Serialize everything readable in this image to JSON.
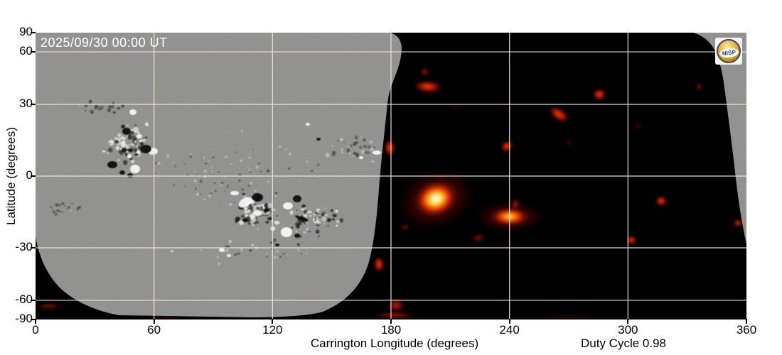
{
  "meta": {
    "timestamp": "2025/09/30 00:00 UT",
    "logo_text": "NISP"
  },
  "axes": {
    "xlabel": "Carrington Longitude (degrees)",
    "ylabel": "Latitude (degrees)",
    "duty_cycle_label": "Duty Cycle 0.98",
    "x_ticks": [
      0,
      60,
      120,
      180,
      240,
      300,
      360
    ],
    "y_ticks": [
      90,
      60,
      30,
      0,
      -30,
      -60,
      -90
    ],
    "grid_x": [
      60,
      120,
      180,
      240,
      300
    ],
    "grid_y": [
      60,
      30,
      0,
      -30,
      -60
    ],
    "x_range": [
      0,
      360
    ],
    "y_range": [
      -90,
      90
    ],
    "y_scale": "sine-latitude",
    "grid": "on"
  },
  "colors": {
    "page_bg": "#ffffff",
    "grid": "#f2e7cf",
    "front_side_gray": "#8f8f8e",
    "far_side_bg": "#000000",
    "timestamp_text": "#ffffff",
    "axis_text": "#000000",
    "hot_core": "#ffffe0",
    "hot_mid": "#ff8c00",
    "hot_red": "#d42100",
    "hot_dark": "#5a0c00",
    "logo_gold": "#d29c1f",
    "speck_white": "#f7f7f7",
    "speck_black": "#0c0c0c"
  },
  "chart_data": {
    "type": "heatmap",
    "title": "",
    "xlabel": "Carrington Longitude (degrees)",
    "ylabel": "Latitude (degrees)",
    "annotations": [
      "2025/09/30 00:00 UT",
      "Duty Cycle 0.98",
      "NISP"
    ],
    "xlim": [
      0,
      360
    ],
    "ylim": [
      -90,
      90
    ],
    "farside_blobs": [
      {
        "lon": 202.7,
        "lat": -9.1,
        "intensity": "bright",
        "rx": 30,
        "ry": 24,
        "rot": -20,
        "halo": true
      },
      {
        "lon": 240.1,
        "lat": -16.4,
        "intensity": "strong",
        "rx": 26,
        "ry": 12,
        "rot": 0,
        "halo": true
      },
      {
        "lon": 243.0,
        "lat": -11.4,
        "intensity": "red-dim",
        "rx": 5,
        "ry": 9,
        "rot": 15
      },
      {
        "lon": 265.0,
        "lat": 25.5,
        "intensity": "red",
        "rx": 16,
        "ry": 8,
        "rot": 35
      },
      {
        "lon": 198.7,
        "lat": 38.6,
        "intensity": "red",
        "rx": 20,
        "ry": 8,
        "rot": 4
      },
      {
        "lon": 196.9,
        "lat": 46.7,
        "intensity": "red-dim",
        "rx": 6,
        "ry": 5,
        "rot": 0
      },
      {
        "lon": 285.5,
        "lat": 34.7,
        "intensity": "red",
        "rx": 9,
        "ry": 8,
        "rot": 0
      },
      {
        "lon": 335.9,
        "lat": 38.6,
        "intensity": "red-dim",
        "rx": 5,
        "ry": 4,
        "rot": 0
      },
      {
        "lon": 238.7,
        "lat": 12.0,
        "intensity": "red",
        "rx": 9,
        "ry": 7,
        "rot": -25
      },
      {
        "lon": 179.3,
        "lat": 11.4,
        "intensity": "red",
        "rx": 7,
        "ry": 12,
        "rot": 0
      },
      {
        "lon": 316.8,
        "lat": -10.0,
        "intensity": "red",
        "rx": 8,
        "ry": 7,
        "rot": 0
      },
      {
        "lon": 301.7,
        "lat": -26.5,
        "intensity": "red",
        "rx": 7,
        "ry": 6,
        "rot": 0
      },
      {
        "lon": 355.7,
        "lat": -19.1,
        "intensity": "red",
        "rx": 6,
        "ry": 5,
        "rot": 0
      },
      {
        "lon": 224.3,
        "lat": -25.5,
        "intensity": "dim",
        "rx": 12,
        "ry": 7,
        "rot": -10
      },
      {
        "lon": 187.2,
        "lat": -20.9,
        "intensity": "dim",
        "rx": 7,
        "ry": 6,
        "rot": 0
      },
      {
        "lon": 173.9,
        "lat": -37.9,
        "intensity": "red",
        "rx": 7,
        "ry": 11,
        "rot": 0
      },
      {
        "lon": 182.5,
        "lat": -64.3,
        "intensity": "red-dim",
        "rx": 12,
        "ry": 9,
        "rot": 0
      },
      {
        "lon": 304.9,
        "lat": 20.3,
        "intensity": "dim",
        "rx": 5,
        "ry": 4,
        "rot": 0
      },
      {
        "lon": 270.0,
        "lat": 13.5,
        "intensity": "dim",
        "rx": 5,
        "ry": 4,
        "rot": 0
      },
      {
        "lon": 212.4,
        "lat": 29.0,
        "intensity": "faint",
        "rx": 7,
        "ry": 5,
        "rot": 0
      },
      {
        "lon": 181.8,
        "lat": -76.0,
        "intensity": "red-dim",
        "rx": 30,
        "ry": 4,
        "rot": 0
      },
      {
        "lon": 6.5,
        "lat": -65.0,
        "intensity": "dim",
        "rx": 22,
        "ry": 5,
        "rot": 0
      },
      {
        "lon": 270.0,
        "lat": -80.0,
        "intensity": "faint",
        "rx": 50,
        "ry": 3,
        "rot": 0
      },
      {
        "lon": 64.8,
        "lat": -79.0,
        "intensity": "faint",
        "rx": 30,
        "ry": 3,
        "rot": 0
      }
    ],
    "magnetogram": {
      "clusters": [
        {
          "cx": 130,
          "cy": 158,
          "sx": 42,
          "sy": 36,
          "n": 75,
          "black": 0.5,
          "min": 1,
          "max": 4,
          "op": 0.8
        },
        {
          "cx": 95,
          "cy": 104,
          "sx": 48,
          "sy": 10,
          "n": 26,
          "black": 0.9,
          "min": 1,
          "max": 3,
          "op": 0.5
        },
        {
          "cx": 310,
          "cy": 252,
          "sx": 40,
          "sy": 34,
          "n": 85,
          "black": 0.5,
          "min": 1,
          "max": 4,
          "op": 0.8
        },
        {
          "cx": 392,
          "cy": 262,
          "sx": 48,
          "sy": 30,
          "n": 75,
          "black": 0.6,
          "min": 1,
          "max": 3.5,
          "op": 0.75
        },
        {
          "cx": 445,
          "cy": 162,
          "sx": 50,
          "sy": 26,
          "n": 38,
          "black": 0.6,
          "min": 1,
          "max": 3,
          "op": 0.5
        },
        {
          "cx": 275,
          "cy": 200,
          "sx": 165,
          "sy": 85,
          "n": 90,
          "black": 0.5,
          "min": 0.8,
          "max": 2.2,
          "op": 0.45
        },
        {
          "cx": 35,
          "cy": 247,
          "sx": 32,
          "sy": 14,
          "n": 20,
          "black": 0.95,
          "min": 1,
          "max": 2.5,
          "op": 0.45
        },
        {
          "cx": 300,
          "cy": 308,
          "sx": 120,
          "sy": 26,
          "n": 34,
          "black": 0.35,
          "min": 0.8,
          "max": 2.5,
          "op": 0.5
        }
      ],
      "patches": [
        {
          "x": 137,
          "y": 112,
          "rx": 5,
          "ry": 4,
          "s": "w"
        },
        {
          "x": 146,
          "y": 146,
          "rx": 4,
          "ry": 3,
          "s": "w"
        },
        {
          "x": 165,
          "y": 167,
          "rx": 7,
          "ry": 5,
          "s": "w"
        },
        {
          "x": 140,
          "y": 192,
          "rx": 7,
          "ry": 6,
          "s": "w"
        },
        {
          "x": 132,
          "y": 174,
          "rx": 3,
          "ry": 3,
          "s": "w"
        },
        {
          "x": 128,
          "y": 139,
          "rx": 6,
          "ry": 5,
          "s": "b"
        },
        {
          "x": 155,
          "y": 164,
          "rx": 8,
          "ry": 6,
          "s": "b"
        },
        {
          "x": 108,
          "y": 186,
          "rx": 7,
          "ry": 5,
          "s": "b"
        },
        {
          "x": 122,
          "y": 197,
          "rx": 4,
          "ry": 3,
          "s": "b"
        },
        {
          "x": 133,
          "y": 201,
          "rx": 4,
          "ry": 3,
          "s": "b"
        },
        {
          "x": 295,
          "y": 239,
          "rx": 10,
          "ry": 6,
          "s": "w",
          "rot": -30
        },
        {
          "x": 312,
          "y": 232,
          "rx": 8,
          "ry": 6,
          "s": "b"
        },
        {
          "x": 312,
          "y": 254,
          "rx": 6,
          "ry": 4,
          "s": "w"
        },
        {
          "x": 280,
          "y": 226,
          "rx": 6,
          "ry": 3,
          "s": "w"
        },
        {
          "x": 325,
          "y": 250,
          "rx": 4,
          "ry": 3,
          "s": "b"
        },
        {
          "x": 355,
          "y": 244,
          "rx": 7,
          "ry": 5,
          "s": "w"
        },
        {
          "x": 368,
          "y": 234,
          "rx": 6,
          "ry": 5,
          "s": "b"
        },
        {
          "x": 353,
          "y": 281,
          "rx": 8,
          "ry": 7,
          "s": "w"
        },
        {
          "x": 368,
          "y": 286,
          "rx": 4,
          "ry": 3,
          "s": "b"
        },
        {
          "x": 375,
          "y": 262,
          "rx": 9,
          "ry": 3,
          "s": "b",
          "rot": 20
        },
        {
          "x": 480,
          "y": 169,
          "rx": 6,
          "ry": 3,
          "s": "w"
        },
        {
          "x": 458,
          "y": 176,
          "rx": 3,
          "ry": 2,
          "s": "w"
        },
        {
          "x": 383,
          "y": 129,
          "rx": 3,
          "ry": 2,
          "s": "w"
        },
        {
          "x": 398,
          "y": 150,
          "rx": 3,
          "ry": 2,
          "s": "b"
        },
        {
          "x": 295,
          "y": 264,
          "rx": 4,
          "ry": 3,
          "s": "b"
        },
        {
          "x": 262,
          "y": 306,
          "rx": 4,
          "ry": 3,
          "s": "w"
        },
        {
          "x": 272,
          "y": 314,
          "rx": 3,
          "ry": 2,
          "s": "w"
        },
        {
          "x": 340,
          "y": 299,
          "rx": 3,
          "ry": 2,
          "s": "b"
        }
      ]
    }
  }
}
